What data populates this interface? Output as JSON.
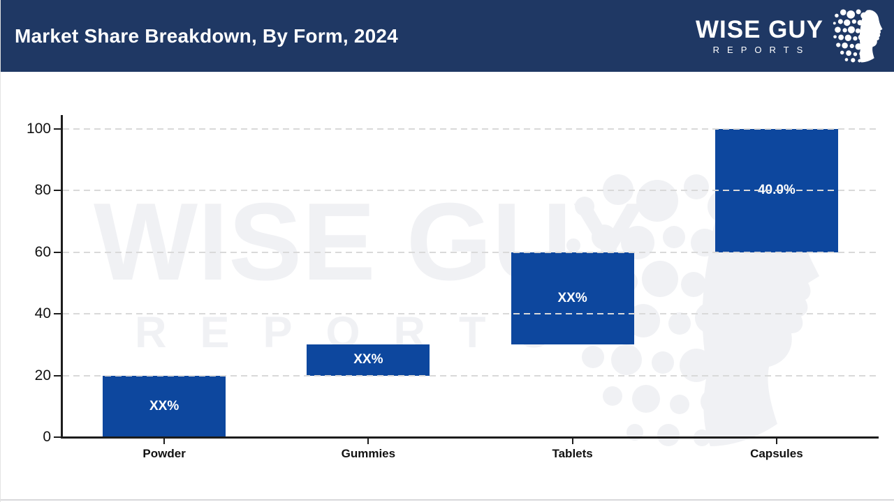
{
  "header": {
    "title": "Market Share Breakdown, By Form, 2024",
    "logo": {
      "line1": "WISE GUY",
      "line2": "REPORTS"
    }
  },
  "watermark": {
    "line1": "WISE GUY",
    "line2": "REPORTS"
  },
  "colors": {
    "header_bg": "#1f3864",
    "bar": "#0d479e",
    "bar_label": "#ffffff",
    "gridline": "#d9d9d9",
    "axis": "#1c1c1c",
    "watermark": "#f0f1f4"
  },
  "chart_data": {
    "type": "bar",
    "subtype": "floating-waterfall",
    "title": "Market Share Breakdown, By Form, 2024",
    "categories": [
      "Powder",
      "Gummies",
      "Tablets",
      "Capsules"
    ],
    "segments": [
      {
        "category": "Powder",
        "start": 0,
        "end": 20,
        "label": "XX%"
      },
      {
        "category": "Gummies",
        "start": 20,
        "end": 30,
        "label": "XX%"
      },
      {
        "category": "Tablets",
        "start": 30,
        "end": 60,
        "label": "XX%"
      },
      {
        "category": "Capsules",
        "start": 60,
        "end": 100,
        "label": "40.0%"
      }
    ],
    "ylim": [
      0,
      100
    ],
    "yticks": [
      0,
      20,
      40,
      60,
      80,
      100
    ],
    "xlabel": "",
    "ylabel": "",
    "grid": "horizontal-dashed",
    "legend": "none",
    "bar_color": "#0d479e",
    "bar_label_color": "#ffffff"
  }
}
